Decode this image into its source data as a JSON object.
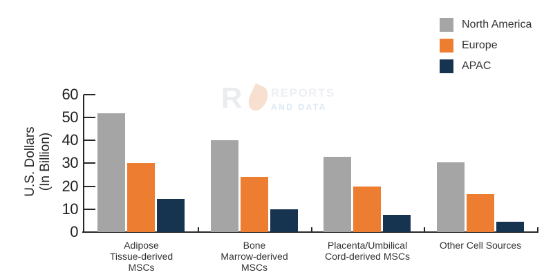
{
  "legend": {
    "items": [
      {
        "label": "North America",
        "color": "#a5a5a5"
      },
      {
        "label": "Europe",
        "color": "#ed7d31"
      },
      {
        "label": "APAC",
        "color": "#16334f"
      }
    ]
  },
  "y_axis": {
    "title": [
      "U.S. Dollars",
      "(In Billion)"
    ]
  },
  "watermark": {
    "logo_letter": "R",
    "line1": "REPORTS",
    "line2": "AND DATA"
  },
  "chart_data": {
    "type": "bar",
    "title": "",
    "xlabel": "",
    "ylabel": "U.S. Dollars (In Billion)",
    "ylim": [
      0,
      60
    ],
    "yticks": [
      0,
      10,
      20,
      30,
      40,
      50,
      60
    ],
    "grid": false,
    "legend_position": "top-right",
    "categories": [
      "Adipose Tissue-derived MSCs",
      "Bone Marrow-derived MSCs",
      "Placenta/Umbilical Cord-derived MSCs",
      "Other Cell Sources"
    ],
    "category_label_lines": [
      [
        "Adipose",
        "Tissue-derived",
        "MSCs"
      ],
      [
        "Bone",
        "Marrow-derived",
        "MSCs"
      ],
      [
        "Placenta/Umbilical",
        "Cord-derived MSCs"
      ],
      [
        "Other Cell Sources"
      ]
    ],
    "series": [
      {
        "name": "North America",
        "color": "#a5a5a5",
        "values": [
          52,
          40,
          33,
          30.5
        ]
      },
      {
        "name": "Europe",
        "color": "#ed7d31",
        "values": [
          30,
          24,
          20,
          16.5
        ]
      },
      {
        "name": "APAC",
        "color": "#16334f",
        "values": [
          14.5,
          10,
          7.5,
          4.5
        ]
      }
    ]
  }
}
